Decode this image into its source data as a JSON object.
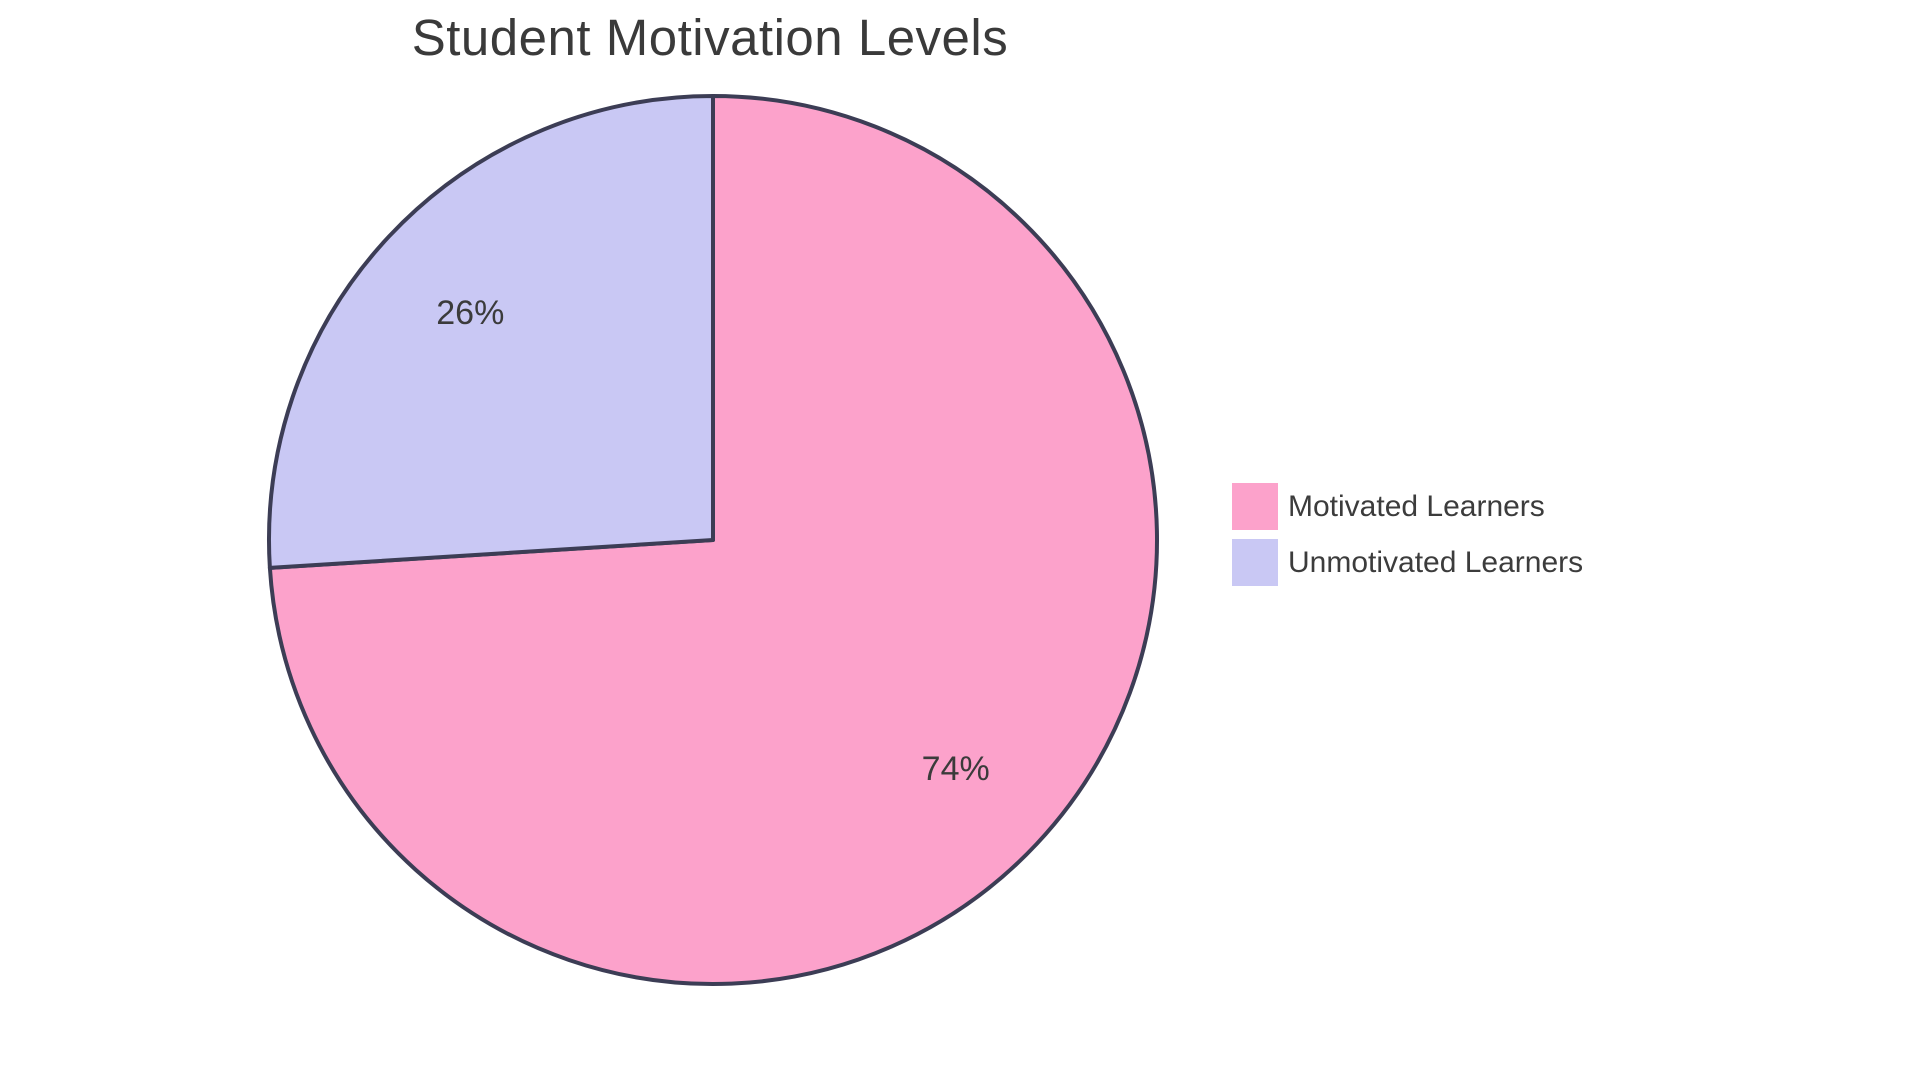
{
  "chart_data": {
    "type": "pie",
    "title": "Student Motivation Levels",
    "slices": [
      {
        "label": "Motivated Learners",
        "value": 74,
        "display": "74%",
        "color": "#fca2cb"
      },
      {
        "label": "Unmotivated Learners",
        "value": 26,
        "display": "26%",
        "color": "#c9c8f4"
      }
    ],
    "start_angle": "12-o-clock",
    "direction": "clockwise",
    "stroke_color": "#3c3d55",
    "label_color": "#3b3b3b",
    "legend_position": "right",
    "background_color": "#ffffff"
  }
}
